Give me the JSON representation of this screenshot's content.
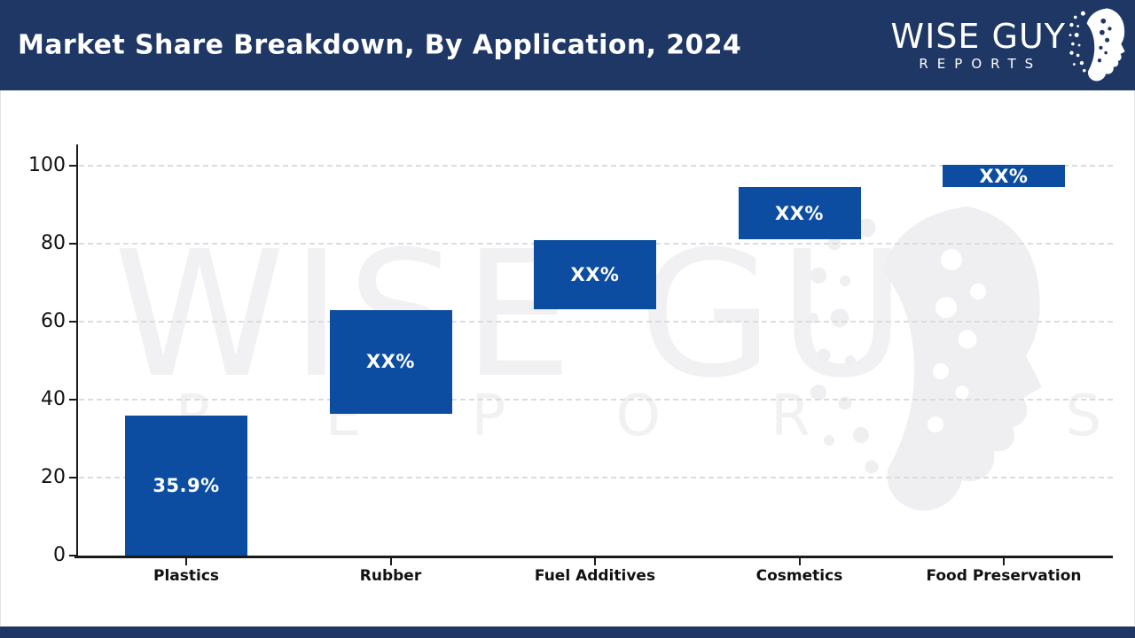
{
  "header": {
    "title": "Market Share Breakdown, By Application, 2024",
    "background_color": "#1f3765",
    "text_color": "#ffffff"
  },
  "logo": {
    "line1": "WISE GUY",
    "line2": "REPORTS"
  },
  "watermark": {
    "line1": "WISE GUY",
    "line2": "R E P O R T S"
  },
  "chart_data": {
    "type": "bar",
    "subtype": "floating-waterfall",
    "title": "Market Share Breakdown, By Application, 2024",
    "categories": [
      "Plastics",
      "Rubber",
      "Fuel Additives",
      "Cosmetics",
      "Food Preservation"
    ],
    "segments": [
      {
        "category": "Plastics",
        "start": 0,
        "end": 35.9,
        "label": "35.9%"
      },
      {
        "category": "Rubber",
        "start": 36.4,
        "end": 63.0,
        "label": "XX%"
      },
      {
        "category": "Fuel Additives",
        "start": 63.2,
        "end": 80.9,
        "label": "XX%"
      },
      {
        "category": "Cosmetics",
        "start": 81.1,
        "end": 94.5,
        "label": "XX%"
      },
      {
        "category": "Food Preservation",
        "start": 94.5,
        "end": 100.2,
        "label": "XX%"
      }
    ],
    "xlabel": "",
    "ylabel": "",
    "y_ticks": [
      0,
      20,
      40,
      60,
      80,
      100
    ],
    "ylim": [
      0,
      105
    ],
    "grid": "horizontal-dashed",
    "bar_color": "#0d4da1",
    "bar_label_color": "#ffffff"
  },
  "footer": {
    "background_color": "#1f3765"
  }
}
